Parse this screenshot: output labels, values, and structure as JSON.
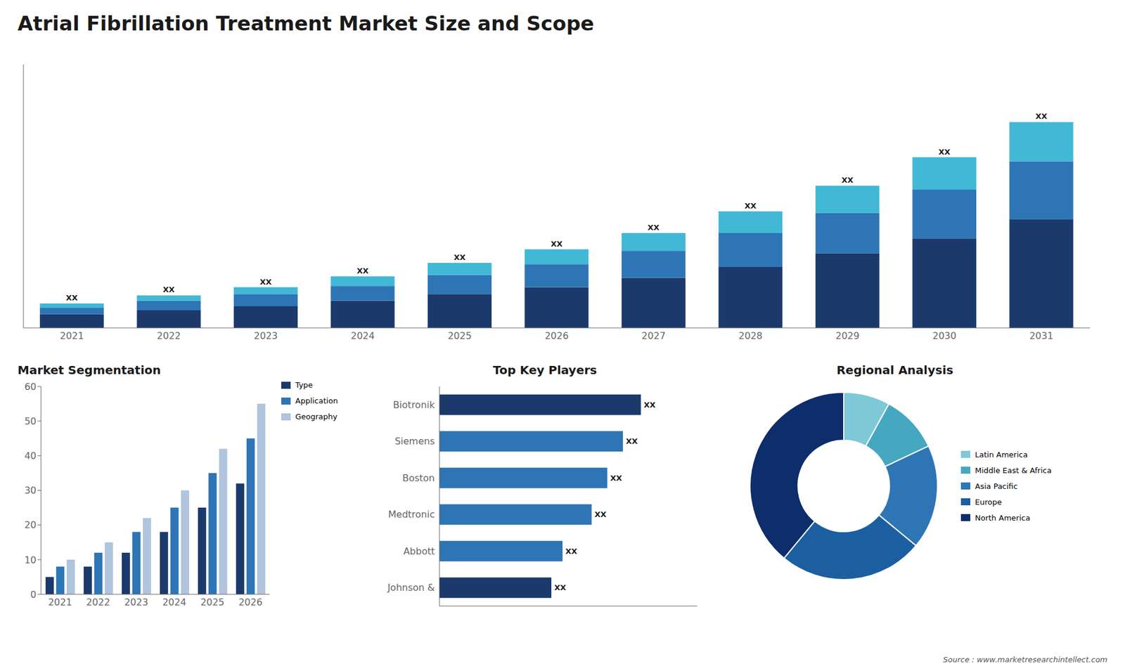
{
  "title": "Atrial Fibrillation Treatment Market Size and Scope",
  "annotations": [
    "Source : www.marketresearchintellect.com"
  ],
  "chart_data": [
    {
      "type": "bar",
      "stacked": true,
      "grid": false,
      "tick_labels": "x",
      "categories": [
        "2021",
        "2022",
        "2023",
        "2024",
        "2025",
        "2026",
        "2027",
        "2028",
        "2029",
        "2030",
        "2031"
      ],
      "ylim": [
        0,
        19.456
      ],
      "series": [
        {
          "color": "#1b3a6b",
          "values": [
            1.0,
            1.3,
            1.6,
            2.0,
            2.5,
            3.0,
            3.7,
            4.5,
            5.5,
            6.6,
            8.0
          ]
        },
        {
          "color": "#2e75b6",
          "values": [
            0.5,
            0.7,
            0.9,
            1.1,
            1.4,
            1.7,
            2.0,
            2.5,
            3.0,
            3.6,
            4.3
          ]
        },
        {
          "color": "#41b8d5",
          "values": [
            0.3,
            0.4,
            0.5,
            0.7,
            0.9,
            1.1,
            1.3,
            1.6,
            2.0,
            2.4,
            2.9
          ],
          "value_labels": [
            "XX",
            "XX",
            "XX",
            "XX",
            "XX",
            "XX",
            "XX",
            "XX",
            "XX",
            "XX",
            "XX"
          ]
        }
      ]
    },
    {
      "type": "bar",
      "title": "Market Segmentation",
      "grid": false,
      "legend": "right",
      "categories": [
        "2021",
        "2022",
        "2023",
        "2024",
        "2025",
        "2026"
      ],
      "ylim": [
        0,
        60
      ],
      "yticks": [
        0,
        10,
        20,
        30,
        40,
        50,
        60
      ],
      "series": [
        {
          "name": "Type",
          "color": "#1b3a6b",
          "values": [
            5,
            8,
            12,
            18,
            25,
            32
          ]
        },
        {
          "name": "Application",
          "color": "#2e75b6",
          "values": [
            8,
            12,
            18,
            25,
            35,
            45
          ]
        },
        {
          "name": "Geography",
          "color": "#b0c4de",
          "values": [
            10,
            15,
            22,
            30,
            42,
            55
          ]
        }
      ]
    },
    {
      "type": "bar",
      "title": "Top Key Players",
      "orientation": "horizontal",
      "grid": false,
      "tick_labels": "y",
      "data_labels": true,
      "categories": [
        "Biotronik",
        "Siemens",
        "Boston",
        "Medtronic",
        "Abbott",
        "Johnson &"
      ],
      "values": [
        9.0,
        8.2,
        7.5,
        6.8,
        5.5,
        5.0
      ],
      "value_labels": [
        "XX",
        "XX",
        "XX",
        "XX",
        "XX",
        "XX"
      ],
      "colors": [
        "#1b3a6b",
        "#2e75b6",
        "#2e75b6",
        "#2e75b6",
        "#2e75b6",
        "#1b3a6b"
      ],
      "xlim": [
        0,
        11.52
      ]
    },
    {
      "type": "pie",
      "title": "Regional Analysis",
      "legend": "right",
      "categories": [
        "Latin America",
        "Middle East & Africa",
        "Asia Pacific",
        "Europe",
        "North America"
      ],
      "values": [
        8,
        10,
        18,
        25,
        39
      ],
      "colors": [
        "#7ec8d8",
        "#45a8c0",
        "#2e75b6",
        "#1b5fa0",
        "#0d2d6b"
      ]
    }
  ]
}
